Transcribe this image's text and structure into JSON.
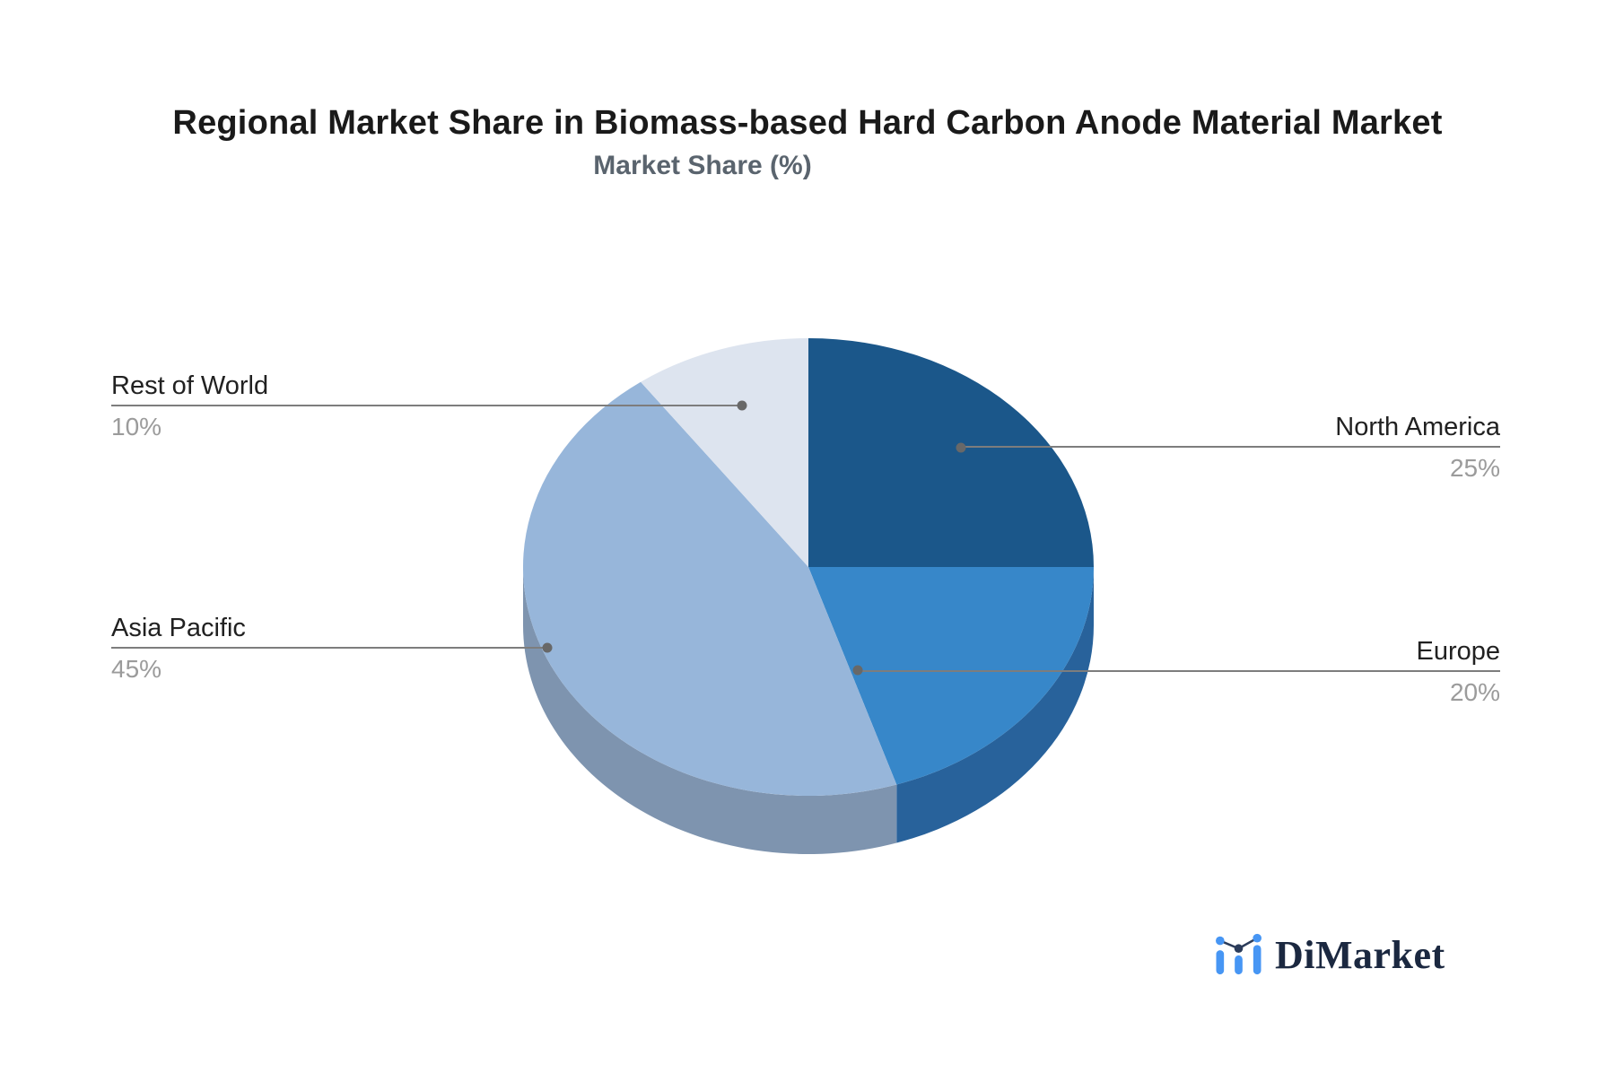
{
  "header": {
    "title": "Regional Market Share in Biomass-based Hard Carbon Anode Material Market",
    "subtitle": "Market Share (%)"
  },
  "chart_data": {
    "type": "pie",
    "title": "Regional Market Share in Biomass-based Hard Carbon Anode Material Market",
    "subtitle": "Market Share (%)",
    "unit": "%",
    "categories": [
      "North America",
      "Europe",
      "Asia Pacific",
      "Rest of World"
    ],
    "values": [
      25,
      20,
      45,
      10
    ],
    "colors": [
      "#1b578a",
      "#3787c9",
      "#97b6da",
      "#dde4ef"
    ],
    "side_colors": [
      "#174a75",
      "#28629b",
      "#7e94af",
      "#bcc6d6"
    ],
    "callouts": [
      {
        "label": "North America",
        "value": "25%",
        "side": "right"
      },
      {
        "label": "Europe",
        "value": "20%",
        "side": "right"
      },
      {
        "label": "Asia Pacific",
        "value": "45%",
        "side": "left"
      },
      {
        "label": "Rest of World",
        "value": "10%",
        "side": "left"
      }
    ],
    "layout": {
      "effect": "3d",
      "start_angle_deg": 0,
      "direction": "clockwise",
      "labels": "callout-lines",
      "legend": "none"
    }
  },
  "style": {
    "leader_line_color": "#7d7d7d",
    "leader_dot_color": "#686868",
    "name_color": "#212121",
    "pct_color": "#9b9b9b"
  },
  "branding": {
    "logo_text": "DiMarket",
    "logo_icon": "bar-line-chart-icon"
  }
}
